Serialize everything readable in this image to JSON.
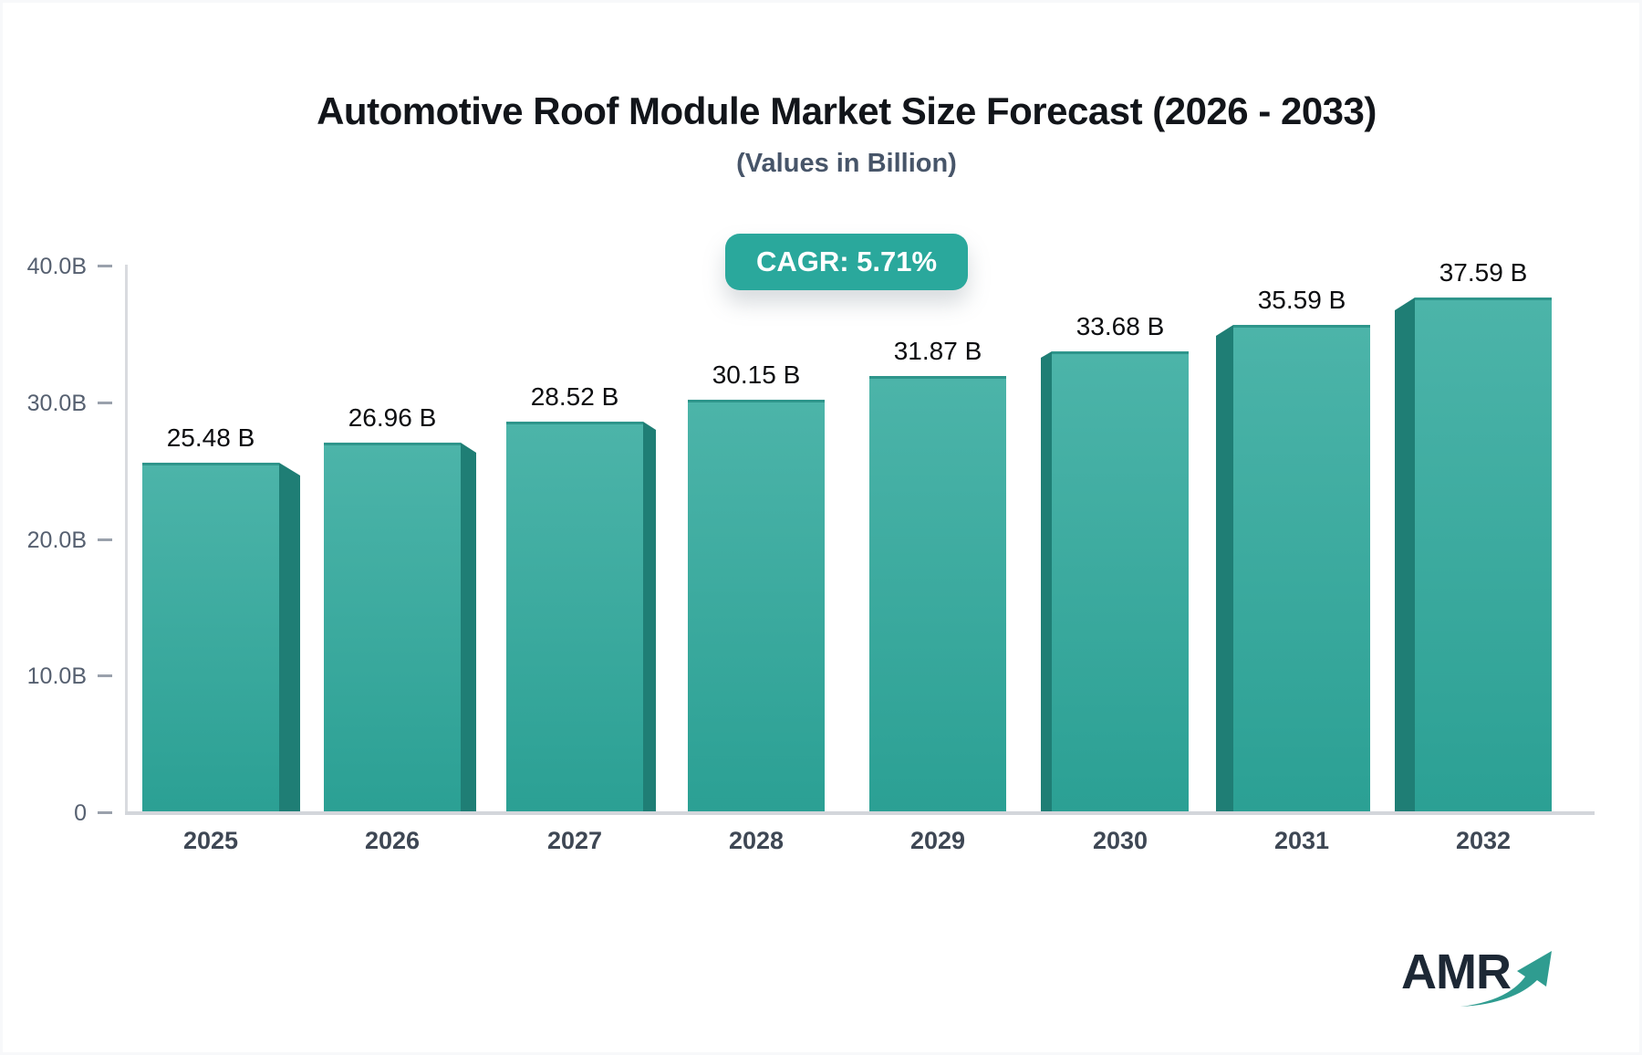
{
  "header": {
    "title": "Automotive Roof Module Market Size Forecast (2026 - 2033)",
    "subtitle": "(Values in Billion)"
  },
  "badge": {
    "label": "CAGR: 5.71%"
  },
  "logo": {
    "text": "AMR"
  },
  "colors": {
    "accent_teal": "#2aa89c",
    "bar_front_top": "#4cb4a9",
    "bar_front_bottom": "#2ba094",
    "bar_top_edge": "#2e958b",
    "bar_side_dark": "#1f7e75",
    "axis_line": "#d9dbdf",
    "axis_text": "#566070",
    "logo_navy": "#1d2835",
    "logo_arrow_teal": "#2f9c90"
  },
  "chart_data": {
    "type": "bar",
    "title": "Automotive Roof Module Market Size Forecast (2026 - 2033)",
    "subtitle": "(Values in Billion)",
    "cagr_label": "CAGR: 5.71%",
    "categories": [
      "2025",
      "2026",
      "2027",
      "2028",
      "2029",
      "2030",
      "2031",
      "2032"
    ],
    "values": [
      25.48,
      26.96,
      28.52,
      30.15,
      31.87,
      33.68,
      35.59,
      37.59
    ],
    "bar_labels": [
      "25.48 B",
      "26.96 B",
      "28.52 B",
      "30.15 B",
      "31.87 B",
      "33.68 B",
      "35.59 B",
      "37.59 B"
    ],
    "xlabel": "",
    "ylabel": "",
    "ylim": [
      0,
      40
    ],
    "yticks": [
      {
        "label": "40.0B",
        "value": 40
      },
      {
        "label": "30.0B",
        "value": 30
      },
      {
        "label": "20.0B",
        "value": 20
      },
      {
        "label": "10.0B",
        "value": 10
      },
      {
        "label": "0",
        "value": 0
      }
    ],
    "grid": false,
    "legend": false
  }
}
